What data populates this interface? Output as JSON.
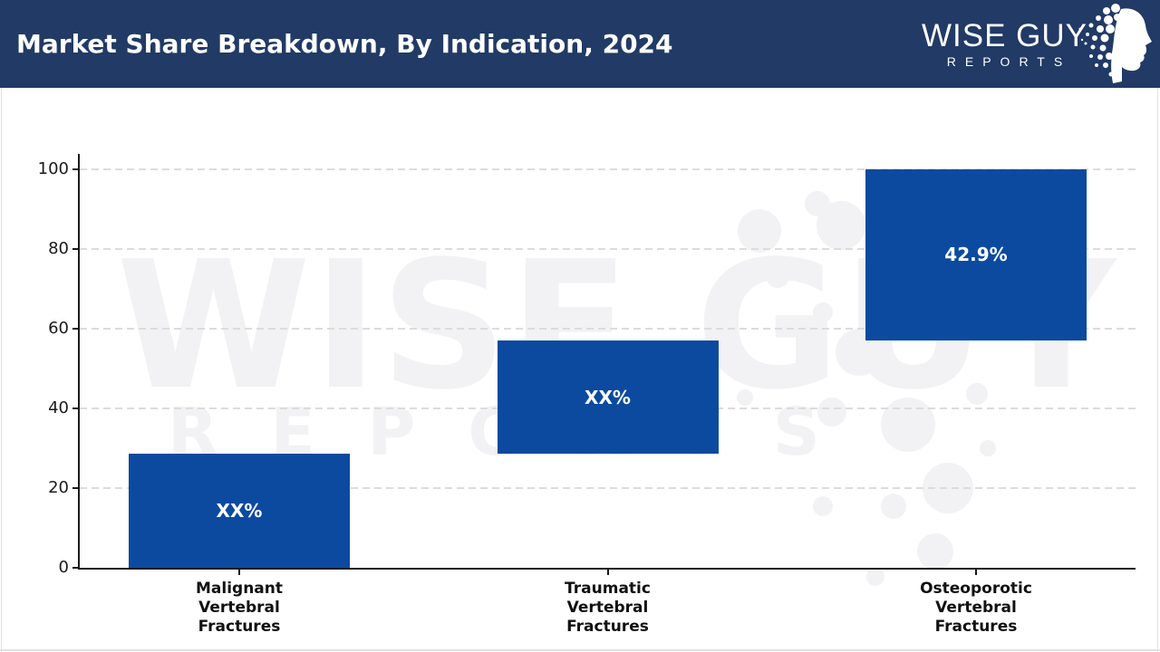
{
  "header": {
    "title": "Market Share Breakdown, By Indication, 2024",
    "logo": {
      "line1": "WISE GUY",
      "line2": "REPORTS"
    }
  },
  "watermark": {
    "line1": "WISE GUY",
    "line2": "REPORTS"
  },
  "colors": {
    "header_bg": "#213A66",
    "bar": "#0B4A9F",
    "bar_label": "#FFFFFF",
    "grid": "#DCDCDC",
    "axis": "#1A1A1A",
    "watermark": "#F2F2F4"
  },
  "chart_data": {
    "type": "bar",
    "subtype": "waterfall",
    "title": "Market Share Breakdown, By Indication, 2024",
    "categories": [
      "Malignant Vertebral Fractures",
      "Traumatic Vertebral Fractures",
      "Osteoporotic Vertebral Fractures"
    ],
    "category_label_lines": [
      [
        "Malignant",
        "Vertebral",
        "Fractures"
      ],
      [
        "Traumatic",
        "Vertebral",
        "Fractures"
      ],
      [
        "Osteoporotic",
        "Vertebral",
        "Fractures"
      ]
    ],
    "segments": [
      {
        "start": 0,
        "end": 28.55,
        "label": "XX%"
      },
      {
        "start": 28.55,
        "end": 57.1,
        "label": "XX%"
      },
      {
        "start": 57.1,
        "end": 100,
        "label": "42.9%"
      }
    ],
    "xlabel": "",
    "ylabel": "",
    "ylim": [
      0,
      100
    ],
    "yticks": [
      0,
      20,
      40,
      60,
      80,
      100
    ],
    "grid": "horizontal-dashed",
    "legend": "none",
    "bar_color": "#0B4A9F"
  }
}
